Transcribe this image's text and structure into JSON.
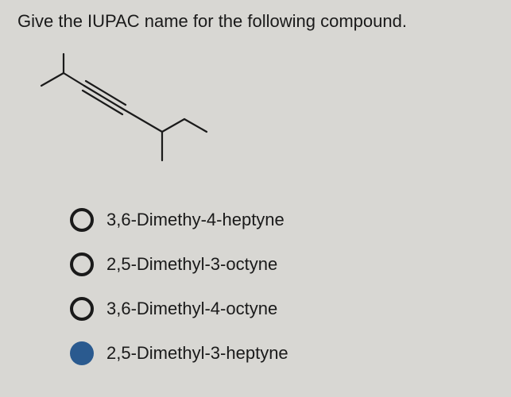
{
  "question": "Give the IUPAC name for the following compound.",
  "options": [
    {
      "label": "3,6-Dimethy-4-heptyne",
      "selected": false
    },
    {
      "label": "2,5-Dimethyl-3-octyne",
      "selected": false
    },
    {
      "label": "3,6-Dimethyl-4-octyne",
      "selected": false
    },
    {
      "label": "2,5-Dimethyl-3-heptyne",
      "selected": true
    }
  ],
  "structure": {
    "stroke": "#1a1a1a",
    "stroke_width": 2.2,
    "paths": [
      "M 22 38 L 50 22",
      "M 50 22 L 76 38",
      "M 50 22 L 50 -2",
      "M 76 38 L 126 68",
      "M 74 44 L 124 74",
      "M 78 32 L 128 62",
      "M 126 68 L 174 96",
      "M 174 96 L 202 80",
      "M 174 96 L 174 132",
      "M 202 80 L 230 96"
    ]
  },
  "colors": {
    "background": "#d8d7d3",
    "text": "#1a1a1a",
    "radio_border": "#1a1a1a",
    "radio_selected_fill": "#2a5a8f"
  }
}
